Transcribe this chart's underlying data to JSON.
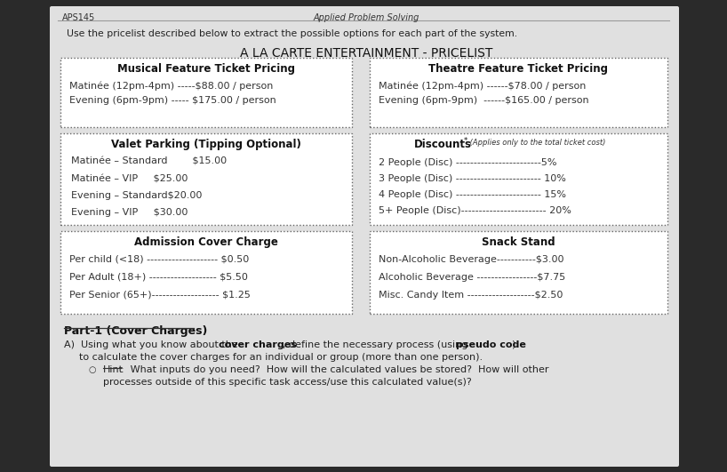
{
  "bg_color": "#2a2a2a",
  "page_color": "#e0e0e0",
  "header_left": "APS145",
  "header_center": "Applied Problem Solving",
  "intro_text": "Use the pricelist described below to extract the possible options for each part of the system.",
  "main_title": "A LA CARTE ENTERTAINMENT - PRICELIST",
  "box1_title": "Musical Feature Ticket Pricing",
  "box1_lines": [
    "Matinée (12pm-4pm) -----$88.00 / person",
    "Evening (6pm-9pm) ----- $175.00 / person"
  ],
  "box2_title": "Theatre Feature Ticket Pricing",
  "box2_lines": [
    "Matinée (12pm-4pm) ------$78.00 / person",
    "Evening (6pm-9pm)  ------$165.00 / person"
  ],
  "box3_title": "Valet Parking (Tipping Optional)",
  "box3_lines": [
    "Matinée – Standard        $15.00",
    "Matinée – VIP     $25.00",
    "Evening – Standard$20.00",
    "Evening – VIP     $30.00"
  ],
  "box4_title": "Discounts",
  "box4_superscript": "*",
  "box4_subtitle": " (Applies only to the total ticket cost)",
  "box4_lines": [
    "2 People (Disc) ------------------------5%",
    "3 People (Disc) ------------------------ 10%",
    "4 People (Disc) ------------------------ 15%",
    "5+ People (Disc)------------------------ 20%"
  ],
  "box5_title": "Admission Cover Charge",
  "box5_lines": [
    "Per child (<18) -------------------- $0.50",
    "Per Adult (18+) ------------------- $5.50",
    "Per Senior (65+)------------------- $1.25"
  ],
  "box6_title": "Snack Stand",
  "box6_lines": [
    "Non-Alcoholic Beverage-----------$3.00",
    "Alcoholic Beverage -----------------$7.75",
    "Misc. Candy Item -------------------$2.50"
  ],
  "part1_title": "Part-1 (Cover Charges)",
  "partA_line1_pre": "A)  Using what you know about the ",
  "partA_line1_bold1": "cover charges",
  "partA_line1_mid": ", define the necessary process (using ",
  "partA_line1_bold2": "pseudo code",
  "partA_line1_end": ")",
  "partA_line2": "to calculate the cover charges for an individual or group (more than one person).",
  "hint_label": "Hint",
  "hint_line1": ":  What inputs do you need?  How will the calculated values be stored?  How will other",
  "hint_line2": "processes outside of this specific task access/use this calculated value(s)?"
}
